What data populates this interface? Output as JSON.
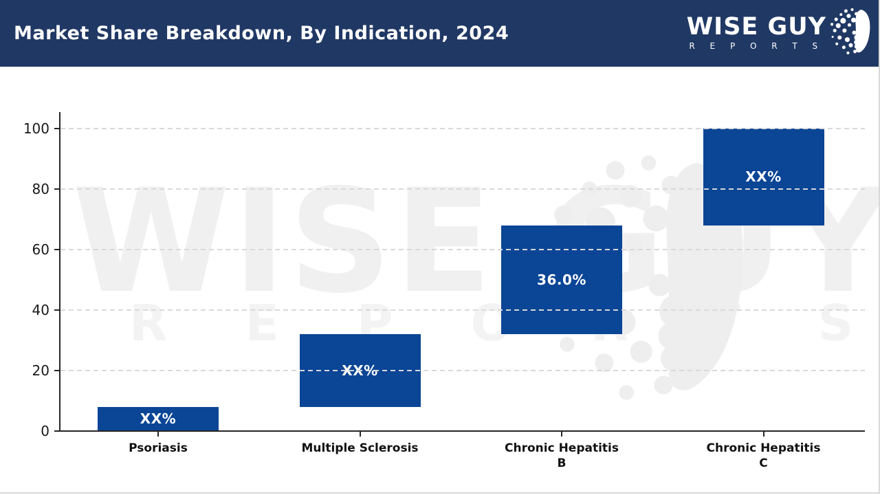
{
  "header": {
    "title": "Market Share Breakdown, By Indication, 2024",
    "logo": {
      "name": "WISE GUY",
      "tagline": "R E P O R T S"
    }
  },
  "watermark": {
    "name": "WISE GUY",
    "tagline": "R E P O R T S"
  },
  "colors": {
    "header_bg": "#203864",
    "bar": "#0a4596",
    "bar_label": "#ffffff",
    "grid": "#d9d9d9",
    "axis": "#262626",
    "tick_label": "#1a1a1a"
  },
  "chart_data": {
    "type": "bar",
    "subtype": "waterfall",
    "title": "Market Share Breakdown, By Indication, 2024",
    "categories": [
      "Psoriasis",
      "Multiple Sclerosis",
      "Chronic Hepatitis\nB",
      "Chronic Hepatitis\nC"
    ],
    "values": [
      8,
      24,
      36,
      32
    ],
    "bases": [
      0,
      8,
      32,
      68
    ],
    "tops": [
      8,
      32,
      68,
      100
    ],
    "bar_labels": [
      "XX%",
      "XX%",
      "36.0%",
      "XX%"
    ],
    "ylim": [
      0,
      100
    ],
    "yticks": [
      0,
      20,
      40,
      60,
      80,
      100
    ],
    "xlabel": "",
    "ylabel": "",
    "grid": "horizontal-dashed",
    "legend": "none",
    "bar_color": "#0a4596",
    "label_color": "#ffffff"
  }
}
